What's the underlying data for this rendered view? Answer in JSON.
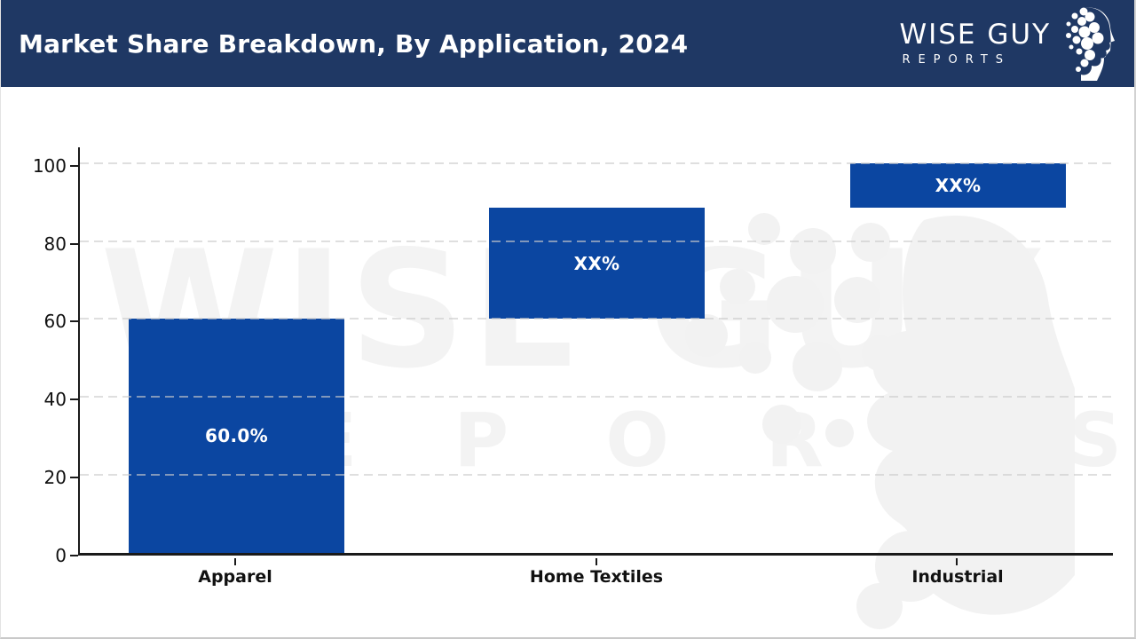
{
  "header": {
    "title": "Market Share Breakdown, By Application, 2024",
    "logo": {
      "line1": "WISE GUY",
      "line2": "REPORTS"
    }
  },
  "watermark": {
    "line1": "WISE GUY",
    "line2": "R E P O R T S"
  },
  "colors": {
    "header_bg": "#1f3864",
    "bar": "#0b46a1",
    "bar_label": "#ffffff",
    "grid": "#cbcbcb",
    "spine": "#1a1a1a",
    "watermark": "#f3f3f3"
  },
  "chart_data": {
    "type": "bar",
    "variant": "floating-segment composition (waterfall-style market share)",
    "title": "Market Share Breakdown, By Application, 2024",
    "categories": [
      "Apparel",
      "Home Textiles",
      "Industrial"
    ],
    "segments": [
      {
        "category": "Apparel",
        "start": 0,
        "end": 60,
        "value_label": "60.0%",
        "share_pct": 60.0
      },
      {
        "category": "Home Textiles",
        "start": 60,
        "end": 88.5,
        "value_label": "XX%",
        "share_pct_est": 28.5
      },
      {
        "category": "Industrial",
        "start": 88.5,
        "end": 100,
        "value_label": "XX%",
        "share_pct_est": 11.5
      }
    ],
    "yticks": [
      0,
      20,
      40,
      60,
      80,
      100
    ],
    "ylim": [
      0,
      104.7
    ],
    "xlabel": "",
    "ylabel": "",
    "grid": "horizontal dashed, drawn over bars",
    "legend": "none",
    "bar_color": "#0b46a1",
    "bar_label_color": "#ffffff"
  }
}
